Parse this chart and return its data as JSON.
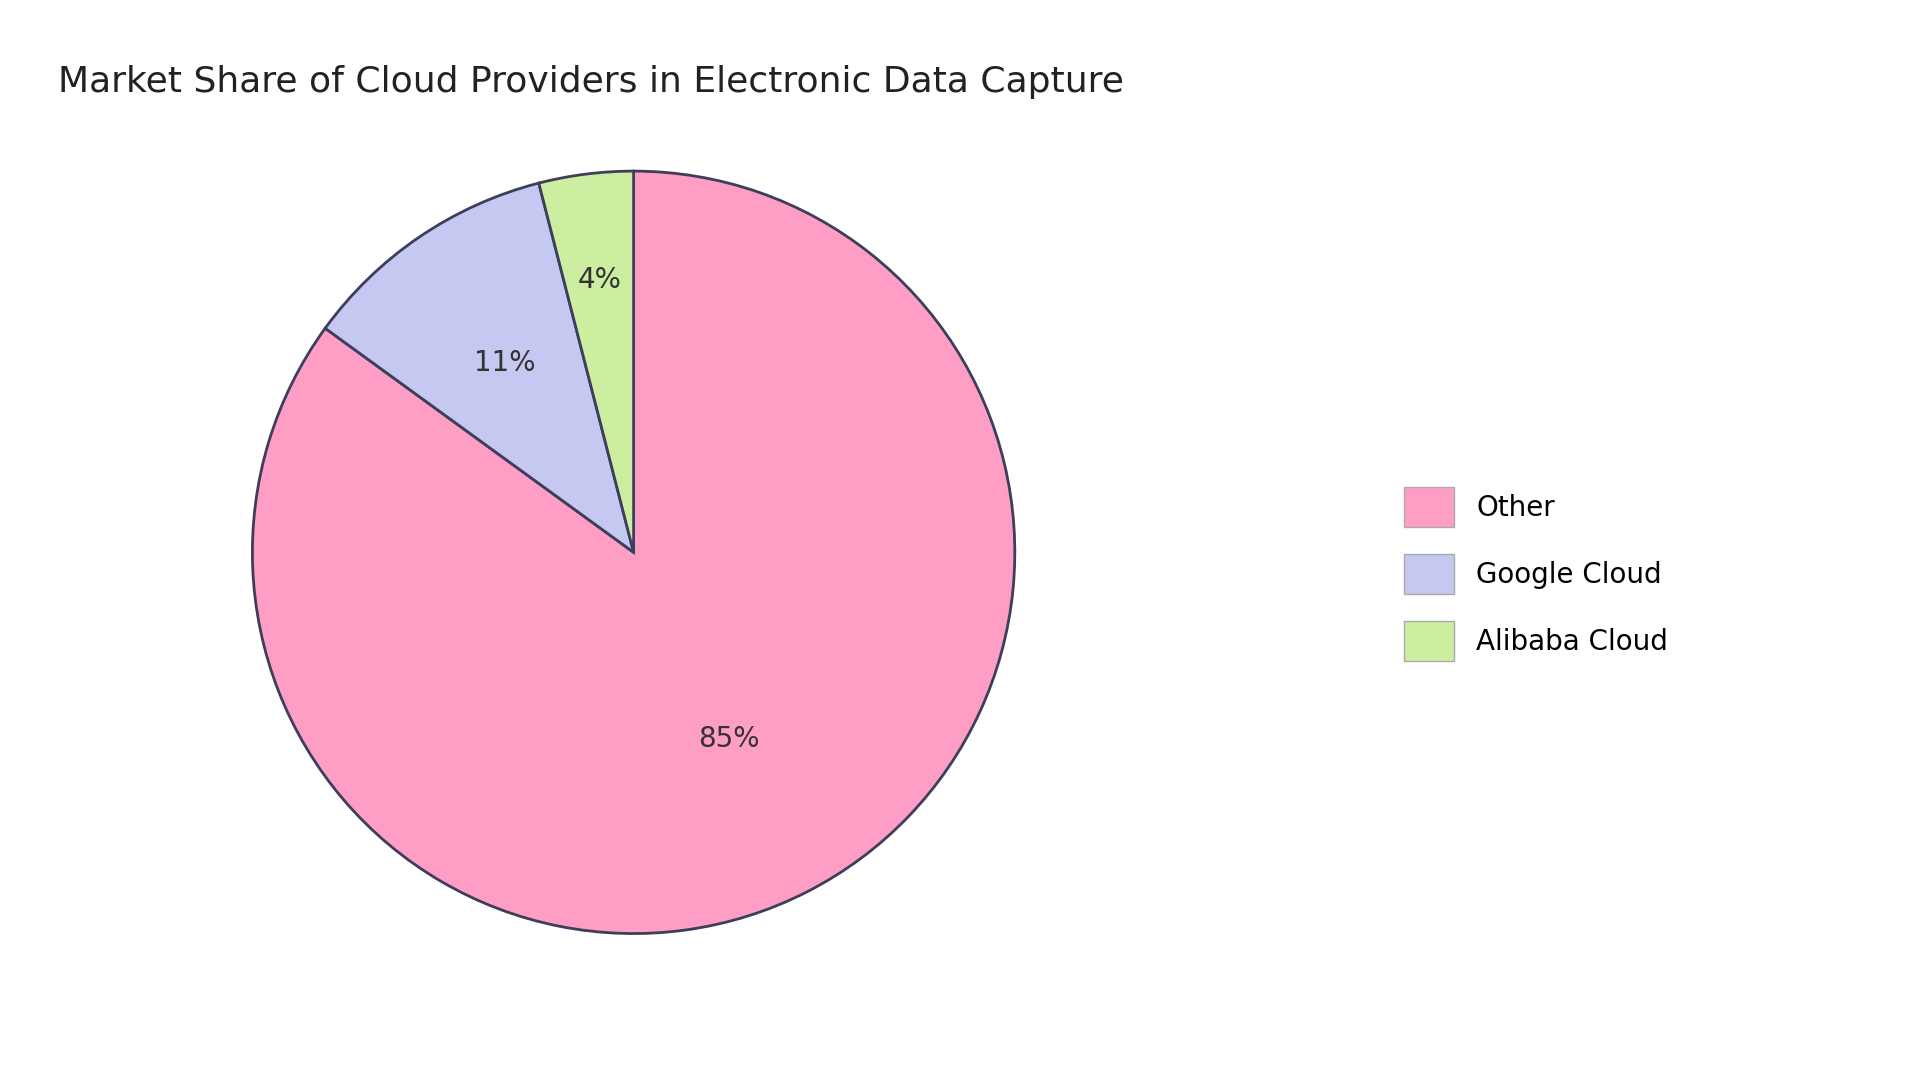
{
  "title": "Market Share of Cloud Providers in Electronic Data Capture",
  "labels": [
    "Other",
    "Google Cloud",
    "Alibaba Cloud"
  ],
  "sizes": [
    85,
    11,
    4
  ],
  "colors": [
    "#FF9EC4",
    "#C5C8F0",
    "#CCEEA0"
  ],
  "edgecolor": "#3d3d5c",
  "edgewidth": 2.0,
  "startangle": 90,
  "pct_labels": [
    "85%",
    "11%",
    "4%"
  ],
  "pct_radii": [
    0.55,
    0.6,
    0.72
  ],
  "title_fontsize": 26,
  "label_fontsize": 20,
  "legend_fontsize": 20,
  "background_color": "#ffffff"
}
